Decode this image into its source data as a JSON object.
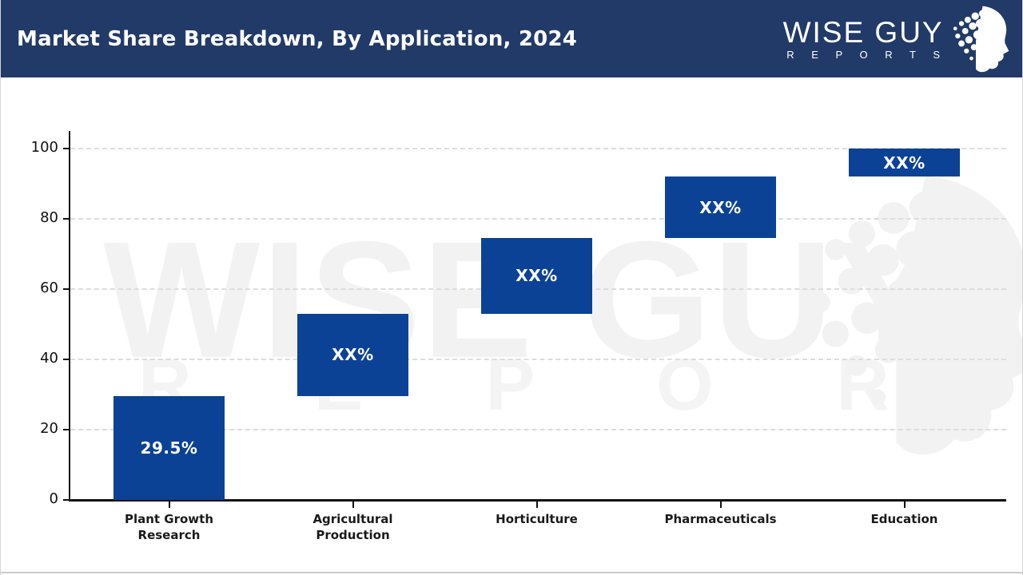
{
  "header": {
    "title": "Market Share Breakdown, By Application, 2024",
    "brand": {
      "line1": "WISE GUY",
      "line2": "REPORTS",
      "line2_display": "R E P O R T S"
    }
  },
  "watermark": {
    "line1": "WISE GUY",
    "line2": "R E P O R T S"
  },
  "chart_data": {
    "type": "bar",
    "subtype": "waterfall",
    "title": "Market Share Breakdown, By Application, 2024",
    "categories": [
      "Plant Growth Research",
      "Agricultural Production",
      "Horticulture",
      "Pharmaceuticals",
      "Education"
    ],
    "tick_labels": [
      "Plant Growth\nResearch",
      "Agricultural\nProduction",
      "Horticulture",
      "Pharmaceuticals",
      "Education"
    ],
    "segments": [
      {
        "category": "Plant Growth Research",
        "start": 0,
        "end": 29.5,
        "label": "29.5%"
      },
      {
        "category": "Agricultural Production",
        "start": 29.5,
        "end": 53,
        "label": "XX%"
      },
      {
        "category": "Horticulture",
        "start": 53,
        "end": 74.5,
        "label": "XX%"
      },
      {
        "category": "Pharmaceuticals",
        "start": 74.5,
        "end": 92,
        "label": "XX%"
      },
      {
        "category": "Education",
        "start": 92,
        "end": 100,
        "label": "XX%"
      }
    ],
    "ylim": [
      0,
      100
    ],
    "yticks": [
      0,
      20,
      40,
      60,
      80,
      100
    ],
    "grid": "horizontal-dashed",
    "legend": "none",
    "colors": {
      "bar": "#0B4296",
      "bar_label": "#FFFFFF",
      "grid": "#DDDDDD",
      "axis": "#111111",
      "header_bg": "#223A68",
      "watermark": "#F2F2F2"
    }
  }
}
